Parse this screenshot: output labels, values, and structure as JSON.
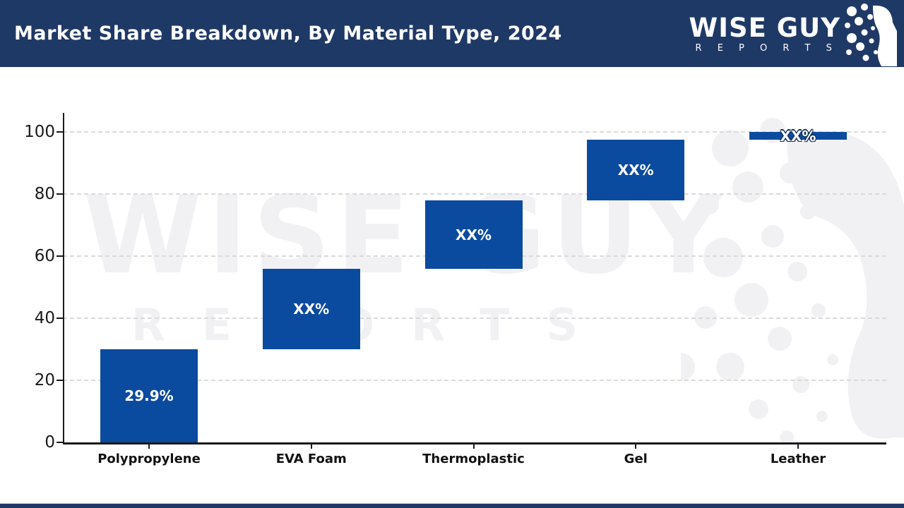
{
  "header": {
    "title": "Market Share Breakdown, By Material Type, 2024",
    "logo_line1": "WISE GUY",
    "logo_line2": "R E P O R T S",
    "bg_color": "#1f3966"
  },
  "watermark": {
    "line1": "WISE GUY",
    "line2": "REPORTS"
  },
  "chart_data": {
    "type": "waterfall",
    "title": "Market Share Breakdown, By Material Type, 2024",
    "categories": [
      "Polypropylene",
      "EVA Foam",
      "Thermoplastic",
      "Gel",
      "Leather"
    ],
    "segments": [
      {
        "category": "Polypropylene",
        "start": 0,
        "end": 29.9,
        "label": "29.9%"
      },
      {
        "category": "EVA Foam",
        "start": 29.9,
        "end": 55.9,
        "label": "XX%"
      },
      {
        "category": "Thermoplastic",
        "start": 55.9,
        "end": 77.9,
        "label": "XX%"
      },
      {
        "category": "Gel",
        "start": 77.9,
        "end": 97.5,
        "label": "XX%"
      },
      {
        "category": "Leather",
        "start": 97.5,
        "end": 100,
        "label": "XX%"
      }
    ],
    "y_ticks": [
      0,
      20,
      40,
      60,
      80,
      100
    ],
    "ylim": [
      0,
      100
    ],
    "xlabel": "",
    "ylabel": "",
    "grid": "dashed-horizontal",
    "legend": "none",
    "bar_color": "#0b4b9f",
    "bar_label_color": "#ffffff",
    "axis_color": "#1a1a1a"
  }
}
